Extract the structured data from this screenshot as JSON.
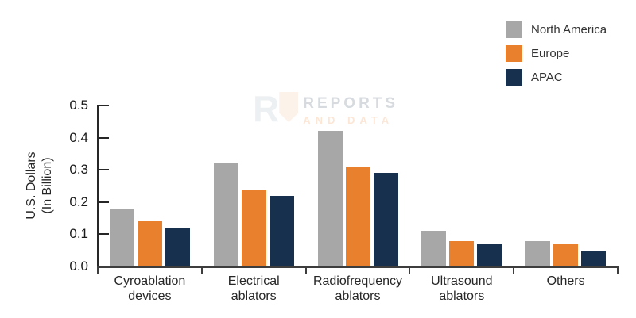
{
  "chart_data": {
    "type": "bar",
    "title": "",
    "categories": [
      "Cyroablation devices",
      "Electrical ablators",
      "Radiofrequency ablators",
      "Ultrasound ablators",
      "Others"
    ],
    "categories_display": [
      "Cyroablation\ndevices",
      "Electrical\nablators",
      "Radiofrequency\nablators",
      "Ultrasound\nablators",
      "Others"
    ],
    "series": [
      {
        "name": "North America",
        "color": "#a7a7a7",
        "values": [
          0.18,
          0.32,
          0.42,
          0.11,
          0.08
        ]
      },
      {
        "name": "Europe",
        "color": "#e8802e",
        "values": [
          0.14,
          0.24,
          0.31,
          0.08,
          0.07
        ]
      },
      {
        "name": "APAC",
        "color": "#16304d",
        "values": [
          0.12,
          0.22,
          0.29,
          0.07,
          0.05
        ]
      }
    ],
    "xlabel": "",
    "ylabel": "U.S. Dollars\n(In Billion)",
    "ylim": [
      0,
      0.5
    ],
    "yticks": [
      "0.0",
      "0.1",
      "0.2",
      "0.3",
      "0.4",
      "0.5"
    ],
    "legend_position": "top-right",
    "grid": false
  },
  "watermark": {
    "monogram": "R",
    "line1": "REPORTS",
    "line2": "AND DATA"
  }
}
